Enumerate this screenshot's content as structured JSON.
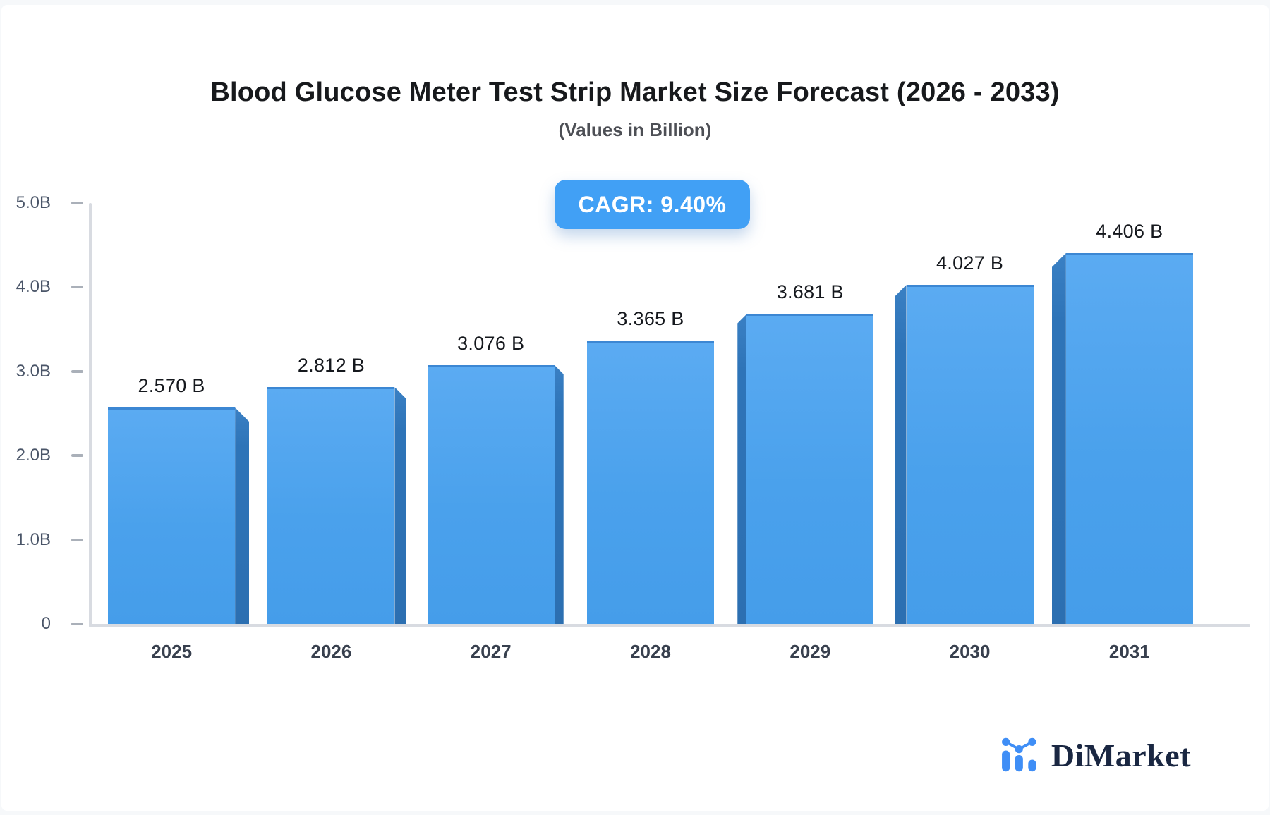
{
  "page": {
    "background": "#f6f8fa",
    "card_background": "#ffffff"
  },
  "header": {
    "title": "Blood Glucose Meter Test Strip Market Size Forecast (2026 - 2033)",
    "subtitle": "(Values in Billion)"
  },
  "badge": {
    "label": "CAGR: 9.40%",
    "color": "#41a0f5",
    "text_color": "#ffffff"
  },
  "chart_data": {
    "type": "bar",
    "title": "Blood Glucose Meter Test Strip Market Size Forecast (2026 - 2033)",
    "subtitle": "(Values in Billion)",
    "categories": [
      "2025",
      "2026",
      "2027",
      "2028",
      "2029",
      "2030",
      "2031"
    ],
    "values": [
      2.57,
      2.812,
      3.076,
      3.365,
      3.681,
      4.027,
      4.406
    ],
    "bar_labels": [
      "2.570 B",
      "2.812 B",
      "3.076 B",
      "3.365 B",
      "3.681 B",
      "4.027 B",
      "4.406 B"
    ],
    "xlabel": "",
    "ylabel": "",
    "ylim": [
      0,
      5
    ],
    "yticks": [
      {
        "value": 5,
        "label": "5.0B"
      },
      {
        "value": 4,
        "label": "4.0B"
      },
      {
        "value": 3,
        "label": "3.0B"
      },
      {
        "value": 2,
        "label": "2.0B"
      },
      {
        "value": 1,
        "label": "1.0B"
      },
      {
        "value": 0,
        "label": "0"
      }
    ],
    "grid": false,
    "legend": false,
    "bar_color": "#4aa1ec",
    "bar_side_color": "#2e74b8",
    "bar_edge_color": "#3c87d3"
  },
  "footer": {
    "brand": "DiMarket",
    "brand_icon": "bar-line-chart-icon",
    "brand_color": "#1a2742",
    "icon_color": "#3f8ef6"
  }
}
